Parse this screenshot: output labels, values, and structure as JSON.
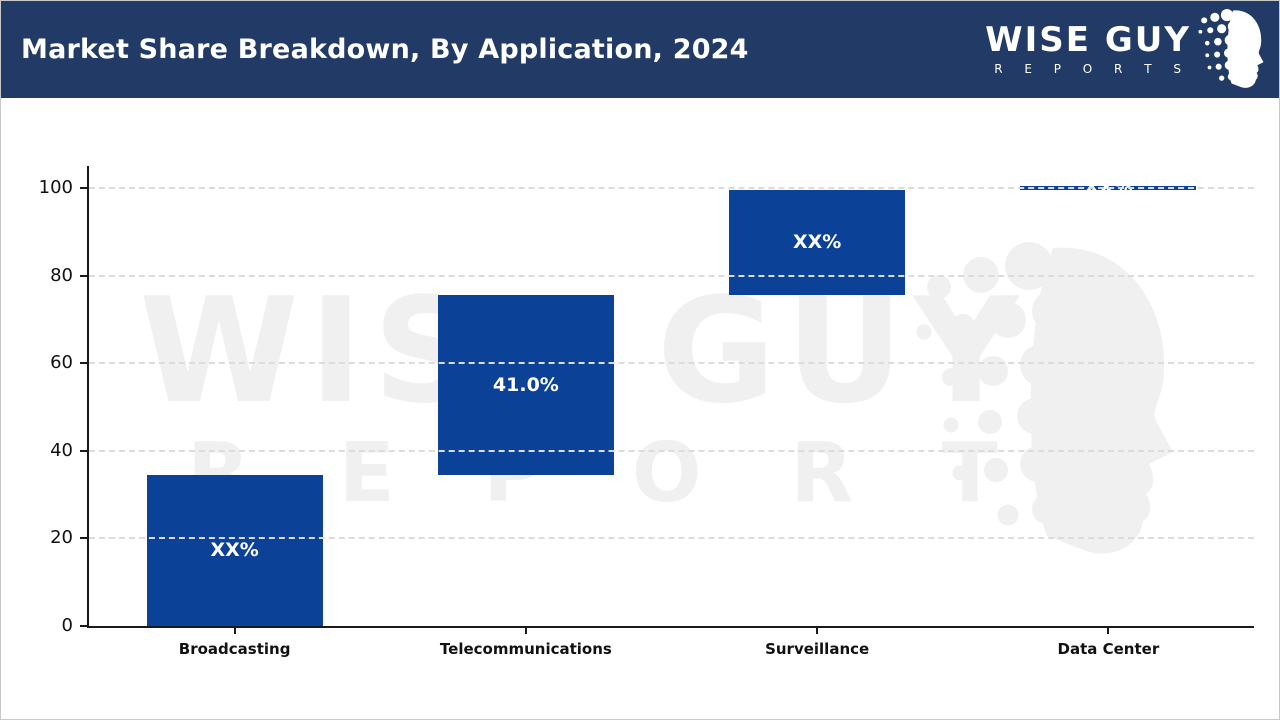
{
  "header": {
    "title": "Market Share Breakdown, By Application, 2024",
    "brand": {
      "line1": "WISE GUY",
      "line2": "R E P O R T S"
    }
  },
  "watermark": {
    "line1": "WISE GUY",
    "line2": "R E P O R T S"
  },
  "colors": {
    "header_bg": "#223a66",
    "bar": "#0b4298",
    "bar_label_text": "#ffffff",
    "axis": "#1a1a1a",
    "gridline": "#dcdcdc",
    "tick_text": "#111111",
    "watermark": "#f0f0f0",
    "page_border": "#c9c9c9"
  },
  "chart_data": {
    "type": "bar",
    "subtype": "waterfall",
    "title": "Market Share Breakdown, By Application, 2024",
    "xlabel": "",
    "ylabel": "",
    "categories": [
      "Broadcasting",
      "Telecommunications",
      "Surveillance",
      "Data Center"
    ],
    "segments": [
      {
        "category": "Broadcasting",
        "start": 0,
        "end": 34.5,
        "label": "XX%"
      },
      {
        "category": "Telecommunications",
        "start": 34.5,
        "end": 75.5,
        "label": "41.0%"
      },
      {
        "category": "Surveillance",
        "start": 75.5,
        "end": 99.5,
        "label": "XX%"
      },
      {
        "category": "Data Center",
        "start": 99.5,
        "end": 100.5,
        "label": "XX%"
      }
    ],
    "ylim": [
      0,
      105
    ],
    "yticks": [
      0,
      20,
      40,
      60,
      80,
      100
    ],
    "grid": true,
    "gridstyle": "dashed",
    "legend": "none"
  }
}
